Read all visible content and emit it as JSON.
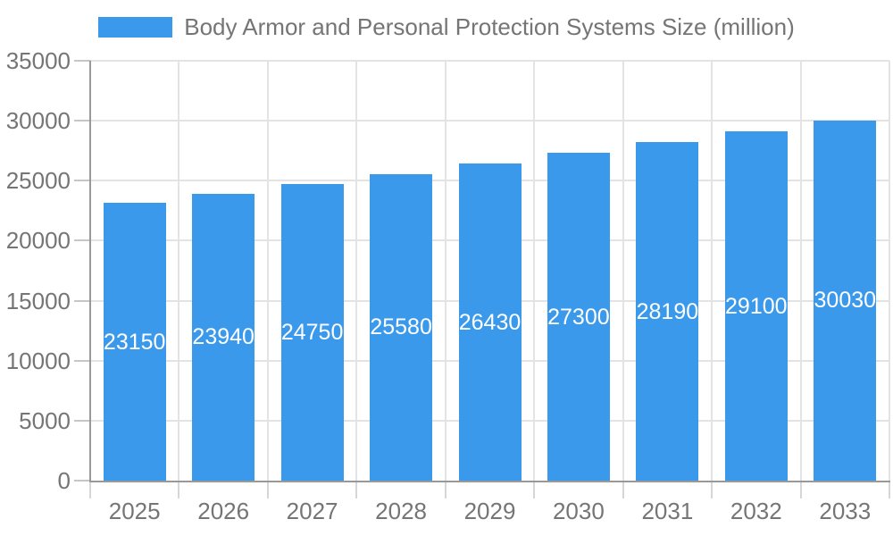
{
  "chart_data": {
    "type": "bar",
    "title": "",
    "legend": [
      "Body Armor and Personal Protection Systems Size (million)"
    ],
    "legend_position": "top-center",
    "categories": [
      "2025",
      "2026",
      "2027",
      "2028",
      "2029",
      "2030",
      "2031",
      "2032",
      "2033"
    ],
    "values": [
      23150,
      23940,
      24750,
      25580,
      26430,
      27300,
      28190,
      29100,
      30030
    ],
    "xlabel": "",
    "ylabel": "",
    "ylim": [
      0,
      35000
    ],
    "ytick_interval": 5000,
    "yticks": [
      0,
      5000,
      10000,
      15000,
      20000,
      25000,
      30000,
      35000
    ],
    "grid": true,
    "value_labels": "inside-center-white",
    "bar_color": "#3b99ec",
    "value_label_color": "#ffffff",
    "axis_text_color": "#757575",
    "gridline_color": "#e3e3e3",
    "axis_line_color": "#999999",
    "y_tick_color": "#c6c6c6",
    "x_tick_color": "#d6d6d6",
    "background_color": "#ffffff"
  }
}
